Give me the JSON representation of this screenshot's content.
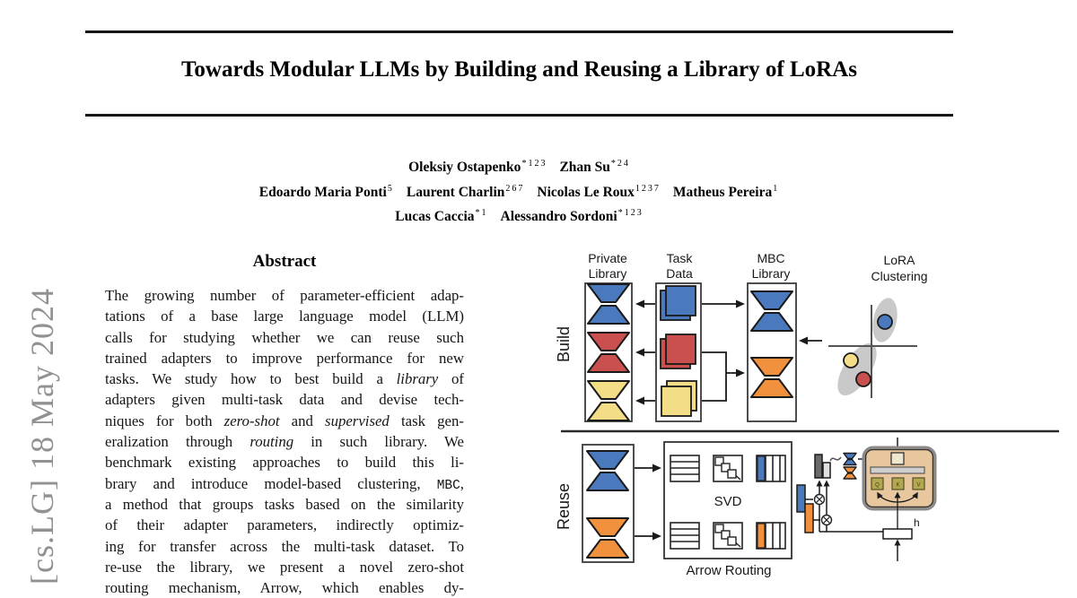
{
  "sidebar": {
    "text": "[cs.LG] 18 May 2024",
    "color": "#919191"
  },
  "title": "Towards Modular LLMs by Building and Reusing a Library of LoRAs",
  "authors": {
    "lines": [
      [
        {
          "name": "Oleksiy Ostapenko",
          "sup": "*123"
        },
        {
          "name": "Zhan Su",
          "sup": "*24"
        }
      ],
      [
        {
          "name": "Edoardo Maria Ponti",
          "sup": "5"
        },
        {
          "name": "Laurent Charlin",
          "sup": "267"
        },
        {
          "name": "Nicolas Le Roux",
          "sup": "1237"
        },
        {
          "name": "Matheus Pereira",
          "sup": "1"
        }
      ],
      [
        {
          "name": "Lucas Caccia",
          "sup": "*1"
        },
        {
          "name": "Alessandro Sordoni",
          "sup": "*123"
        }
      ]
    ]
  },
  "abstract": {
    "heading": "Abstract",
    "lines": [
      [
        [
          "n",
          "The growing number of parameter-efficient adap-"
        ]
      ],
      [
        [
          "n",
          "tations of a base large language model (LLM)"
        ]
      ],
      [
        [
          "n",
          "calls for studying whether we can reuse such"
        ]
      ],
      [
        [
          "n",
          "trained adapters to improve performance for new"
        ]
      ],
      [
        [
          "n",
          "tasks. We study how to best build a "
        ],
        [
          "i",
          "library"
        ],
        [
          "n",
          " of"
        ]
      ],
      [
        [
          "n",
          "adapters given multi-task data and devise tech-"
        ]
      ],
      [
        [
          "n",
          "niques for both "
        ],
        [
          "i",
          "zero-shot"
        ],
        [
          "n",
          " and "
        ],
        [
          "i",
          "supervised"
        ],
        [
          "n",
          " task gen-"
        ]
      ],
      [
        [
          "n",
          "eralization through "
        ],
        [
          "i",
          "routing"
        ],
        [
          "n",
          " in such library. We"
        ]
      ],
      [
        [
          "n",
          "benchmark existing approaches to build this li-"
        ]
      ],
      [
        [
          "n",
          "brary and introduce model-based clustering, "
        ],
        [
          "m",
          "MBC"
        ],
        [
          "n",
          ","
        ]
      ],
      [
        [
          "n",
          "a method that groups tasks based on the similarity"
        ]
      ],
      [
        [
          "n",
          "of their adapter parameters, indirectly optimiz-"
        ]
      ],
      [
        [
          "n",
          "ing for transfer across the multi-task dataset. To"
        ]
      ],
      [
        [
          "n",
          "re-use the library, we present a novel zero-shot"
        ]
      ],
      [
        [
          "n",
          "routing mechanism, Arrow, which enables dy-"
        ]
      ]
    ]
  },
  "figure": {
    "labels": {
      "private_library": [
        "Private",
        "Library"
      ],
      "task_data": [
        "Task",
        "Data"
      ],
      "mbc_library": [
        "MBC",
        "Library"
      ],
      "lora_clustering": [
        "LoRA",
        "Clustering"
      ],
      "build": "Build",
      "reuse": "Reuse",
      "svd": "SVD",
      "arrow_routing": "Arrow Routing",
      "h": "h",
      "q": "Q",
      "k": "K",
      "v": "V"
    },
    "colors": {
      "blue": "#4a79bd",
      "red": "#c9504e",
      "yellow": "#f3dd86",
      "orange": "#f2913d",
      "tan": "#e9c79e",
      "olive": "#b2a84f",
      "gray_cluster": "#c9c9c9",
      "gray_bar_dark": "#6a6a6a",
      "gray_bar_light": "#e0e0e0",
      "attn_bar": "#cfcfcf",
      "top_cell": "#efe7cd"
    }
  }
}
